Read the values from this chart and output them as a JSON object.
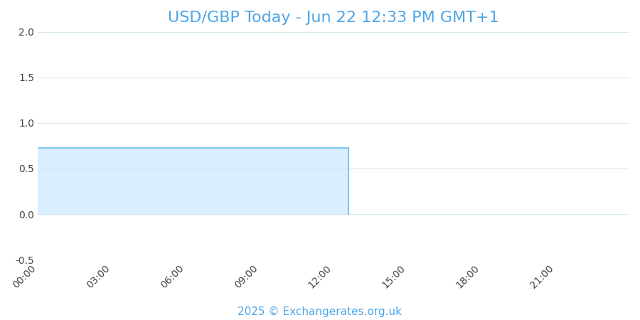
{
  "title": "USD/GBP Today - Jun 22 12:33 PM GMT+1",
  "footer": "2025 © Exchangerates.org.uk",
  "title_color": "#4da6e8",
  "footer_color": "#4da6e8",
  "line_color": "#6bbfed",
  "fill_color": "#dbeeff",
  "background_color": "#ffffff",
  "plot_bg_color": "#ffffff",
  "grid_color": "#d5e8f0",
  "ylim": [
    -0.5,
    2.0
  ],
  "yticks": [
    -0.5,
    0.0,
    0.5,
    1.0,
    1.5,
    2.0
  ],
  "xtick_labels": [
    "00:00",
    "03:00",
    "06:00",
    "09:00",
    "12:00",
    "15:00",
    "18:00",
    "21:00"
  ],
  "xtick_positions": [
    0,
    3,
    6,
    9,
    12,
    15,
    18,
    21
  ],
  "xlim": [
    0,
    24
  ],
  "line_value": 0.726,
  "line_start": 0,
  "line_end": 12.6,
  "title_fontsize": 16,
  "tick_fontsize": 10,
  "footer_fontsize": 11,
  "tick_color": "#444444",
  "linewidth": 1.2
}
